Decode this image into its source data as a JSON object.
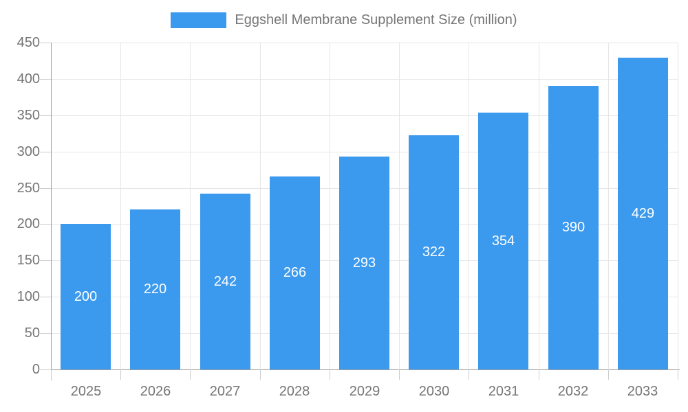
{
  "chart_data": {
    "type": "bar",
    "title": "",
    "legend": {
      "label": "Eggshell Membrane Supplement Size (million)",
      "position": "top"
    },
    "categories": [
      "2025",
      "2026",
      "2027",
      "2028",
      "2029",
      "2030",
      "2031",
      "2032",
      "2033"
    ],
    "series": [
      {
        "name": "Eggshell Membrane Supplement Size (million)",
        "values": [
          200,
          220,
          242,
          266,
          293,
          322,
          354,
          390,
          429
        ]
      }
    ],
    "xlabel": "",
    "ylabel": "",
    "ylim": [
      0,
      450
    ],
    "ytick_step": 50,
    "ytick_labels": [
      "0",
      "50",
      "100",
      "150",
      "200",
      "250",
      "300",
      "350",
      "400",
      "450"
    ],
    "grid": true,
    "value_labels": "inside-center"
  },
  "colors": {
    "bar": "#3b99ee",
    "grid": "#e6e6e6",
    "axis": "#9e9e9e",
    "tick": "#cccccc",
    "text": "#757575",
    "value_label": "#ffffff",
    "background": "#ffffff"
  }
}
